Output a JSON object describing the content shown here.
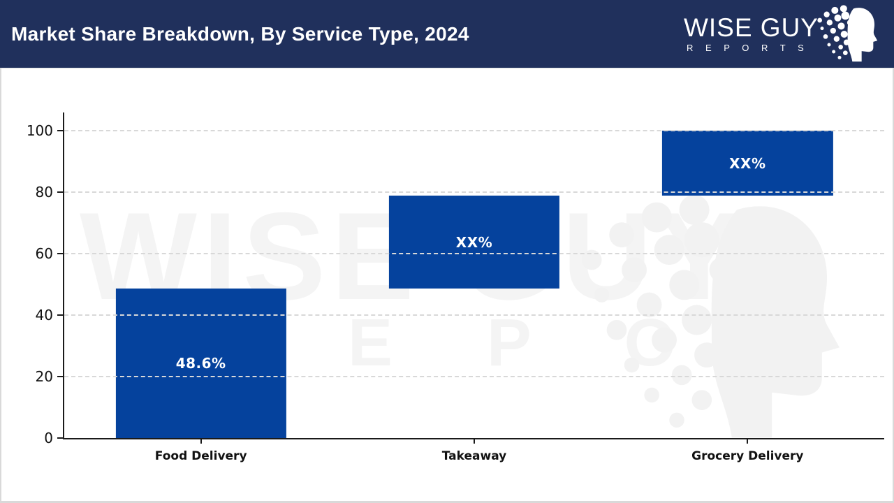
{
  "header": {
    "title": "Market Share Breakdown, By Service Type, 2024",
    "logo_line1": "WISE GUY",
    "logo_line2": "R E P O R T S",
    "bg_color": "#20305c"
  },
  "watermark": {
    "line1": "WISE GUY",
    "line2": "R E P O R T S"
  },
  "chart_data": {
    "type": "bar",
    "subtype": "waterfall",
    "title": "Market Share Breakdown, By Service Type, 2024",
    "categories": [
      "Food Delivery",
      "Takeaway",
      "Grocery Delivery"
    ],
    "segments": [
      {
        "category": "Food Delivery",
        "start": 0,
        "end": 48.6,
        "label": "48.6%"
      },
      {
        "category": "Takeaway",
        "start": 48.6,
        "end": 79,
        "label": "XX%"
      },
      {
        "category": "Grocery Delivery",
        "start": 79,
        "end": 100,
        "label": "XX%"
      }
    ],
    "xlabel": "",
    "ylabel": "",
    "yticks": [
      0,
      20,
      40,
      60,
      80,
      100
    ],
    "ylim": [
      0,
      106
    ],
    "grid": "horizontal-dashed",
    "legend": "none",
    "bar_color": "#05429d",
    "bar_label_color": "#ffffff",
    "axis_color": "#1a1a1a",
    "tick_label_color": "#111111",
    "gridline_color": "#d8d8d8"
  }
}
